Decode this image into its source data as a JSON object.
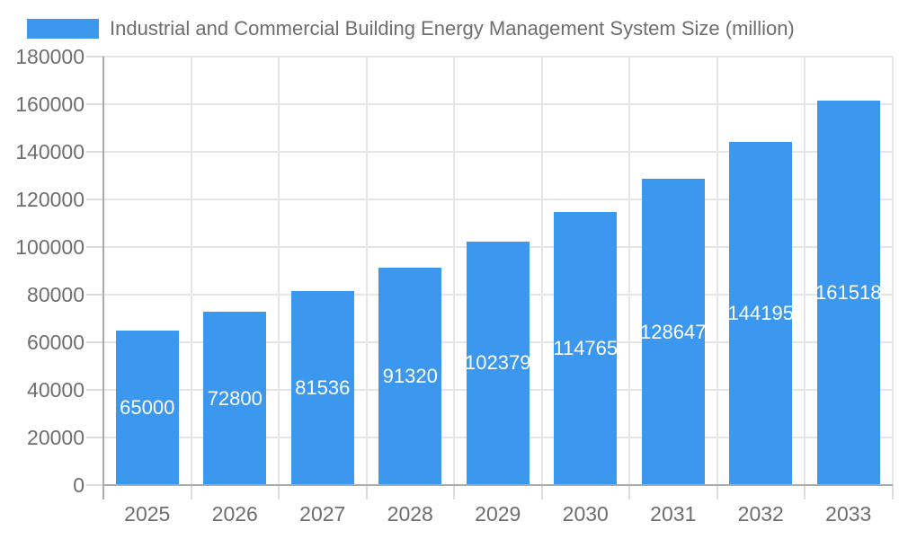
{
  "chart_data": {
    "type": "bar",
    "title": "Industrial and Commercial Building Energy Management System Size (million)",
    "categories": [
      "2025",
      "2026",
      "2027",
      "2028",
      "2029",
      "2030",
      "2031",
      "2032",
      "2033"
    ],
    "values": [
      65000,
      72800,
      81536,
      91320,
      102379,
      114765,
      128647,
      144195,
      161518
    ],
    "bar_value_labels": [
      "65000",
      "72800",
      "81536",
      "91320",
      "102379",
      "114765",
      "128647",
      "144195",
      "161518"
    ],
    "y_tick_labels": [
      "0",
      "20000",
      "40000",
      "60000",
      "80000",
      "100000",
      "120000",
      "140000",
      "160000",
      "180000"
    ],
    "xlabel": "",
    "ylabel": "",
    "ylim": [
      0,
      180000
    ],
    "ytick_step": 20000,
    "legend_position": "top",
    "grid": true
  },
  "colors": {
    "bar": "#3b98ee",
    "grid": "#e6e6e6",
    "tick": "#dcdcdc",
    "axis": "#ababab",
    "text": "#6e6e6e",
    "bar_label_text": "#ffffff",
    "background": "#ffffff"
  }
}
